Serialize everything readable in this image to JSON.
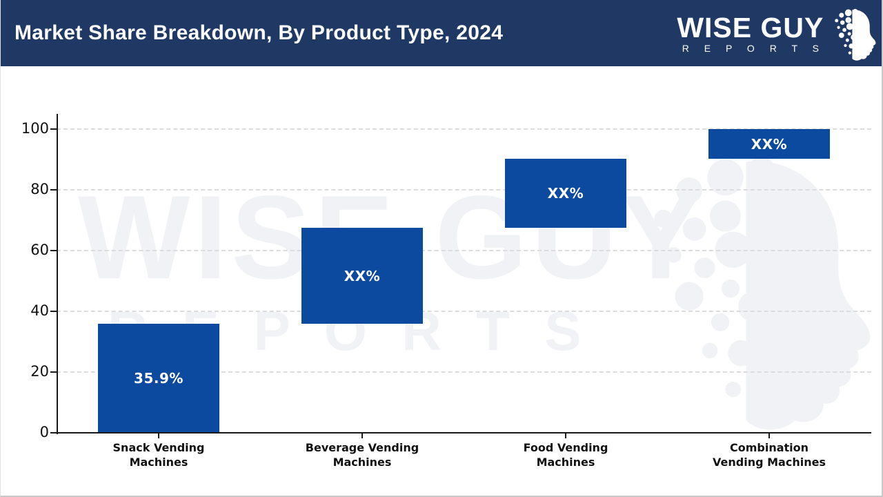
{
  "header": {
    "title": "Market Share Breakdown, By Product Type, 2024",
    "logo": {
      "line1": "WISE GUY",
      "line2": "R E P O R T S"
    }
  },
  "watermark": {
    "line1": "WISE GUY",
    "line2": "R E P O R T S"
  },
  "chart_data": {
    "type": "bar",
    "subtype": "floating-waterfall",
    "title": "Market Share Breakdown, By Product Type, 2024",
    "categories": [
      {
        "name": "Snack Vending Machines",
        "lines": [
          "Snack Vending",
          "Machines"
        ]
      },
      {
        "name": "Beverage Vending Machines",
        "lines": [
          "Beverage Vending",
          "Machines"
        ]
      },
      {
        "name": "Food Vending Machines",
        "lines": [
          "Food Vending",
          "Machines"
        ]
      },
      {
        "name": "Combination Vending Machines",
        "lines": [
          "Combination",
          "Vending Machines"
        ]
      }
    ],
    "bars": [
      {
        "start": 0,
        "end": 35.9,
        "label": "35.9%"
      },
      {
        "start": 35.9,
        "end": 67.4,
        "label": "XX%"
      },
      {
        "start": 67.4,
        "end": 90.1,
        "label": "XX%"
      },
      {
        "start": 90.1,
        "end": 100,
        "label": "XX%"
      }
    ],
    "ylim": [
      0,
      100
    ],
    "yticks": [
      0,
      20,
      40,
      60,
      80,
      100
    ],
    "grid": {
      "horizontal": true,
      "style": "dashed"
    },
    "legend": null,
    "colors": {
      "bar": "#0b4a9e",
      "header_bg": "#1f3864",
      "grid": "#dcdcdc",
      "axis": "#1a1a1a",
      "tick_text": "#111111",
      "bar_label": "#ffffff",
      "watermark": "#f1f2f5"
    }
  }
}
